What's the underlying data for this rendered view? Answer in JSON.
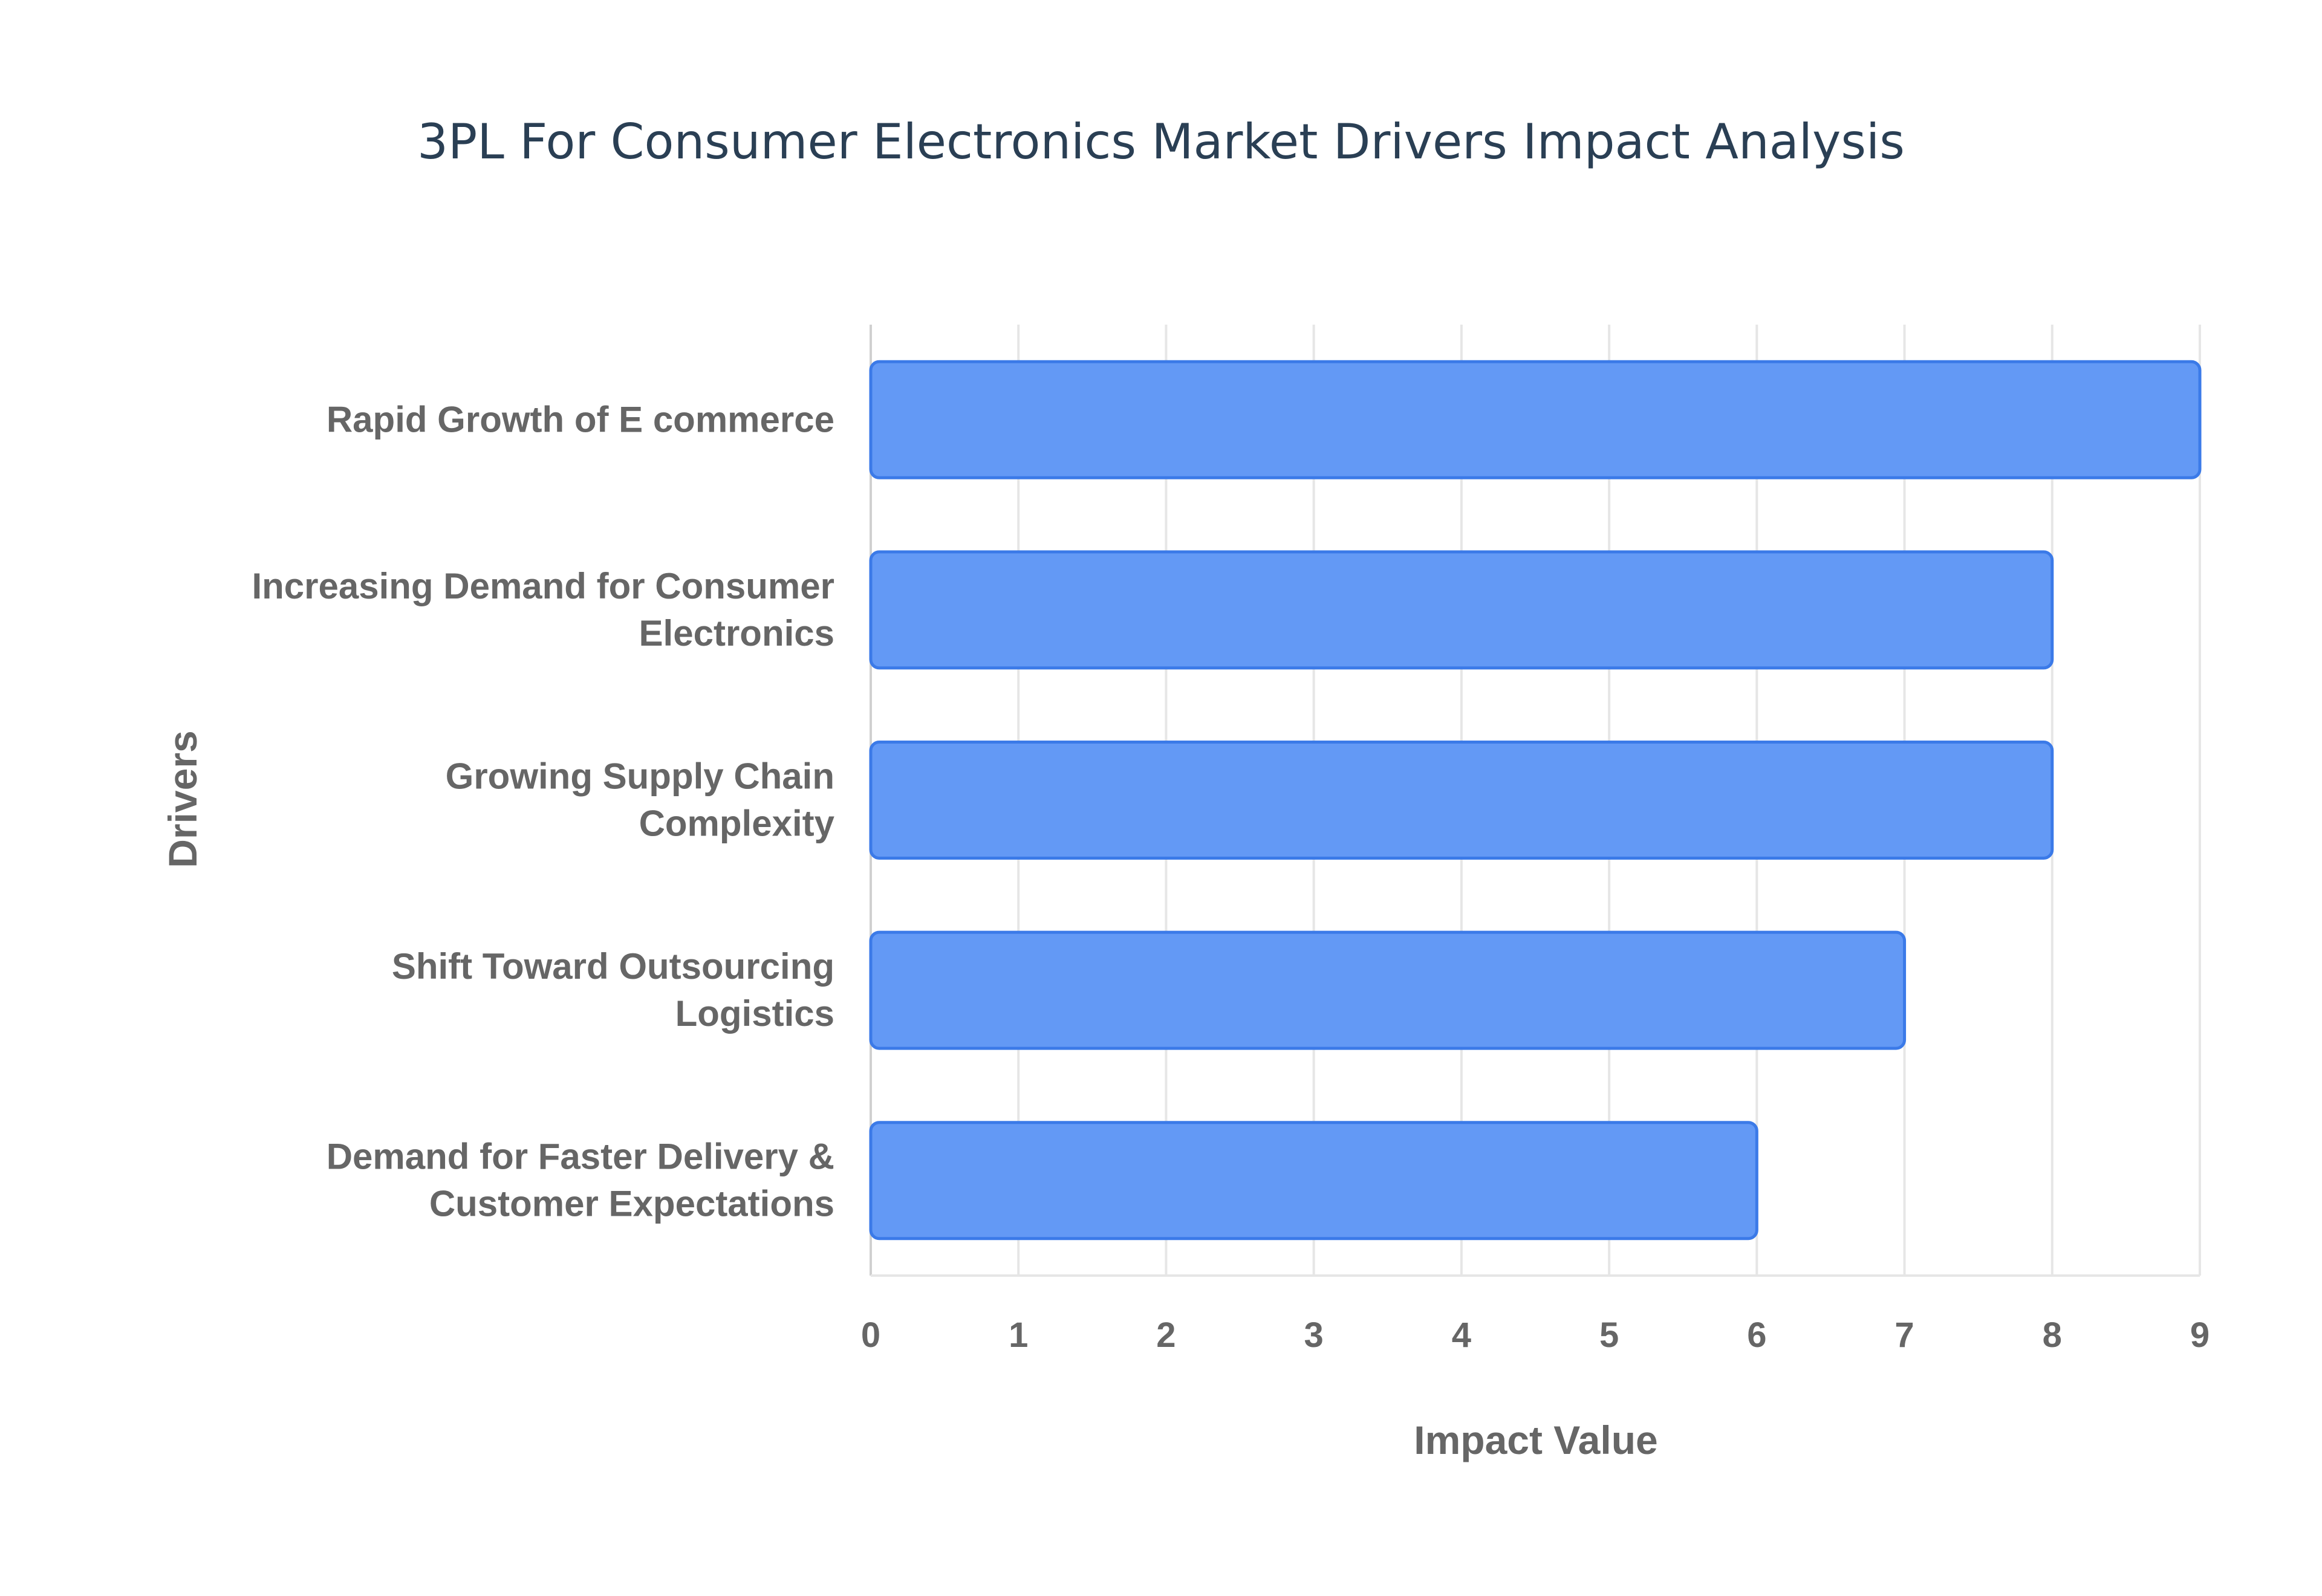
{
  "chart_data": {
    "type": "bar",
    "orientation": "horizontal",
    "title": "3PL For Consumer Electronics Market Drivers Impact Analysis",
    "xlabel": "Impact Value",
    "ylabel": "Drivers",
    "categories": [
      [
        "Rapid Growth of E commerce"
      ],
      [
        "Increasing Demand for Consumer",
        "Electronics"
      ],
      [
        "Growing Supply Chain",
        "Complexity"
      ],
      [
        "Shift Toward Outsourcing",
        "Logistics"
      ],
      [
        "Demand for Faster Delivery &",
        "Customer Expectations"
      ]
    ],
    "values": [
      9,
      8,
      8,
      7,
      6
    ],
    "xlim": [
      0,
      9
    ],
    "xticks": [
      "0",
      "1",
      "2",
      "3",
      "4",
      "5",
      "6",
      "7",
      "8",
      "9"
    ],
    "grid": true,
    "colors": {
      "bar_fill": "#6399f5",
      "bar_stroke": "#3b7ae8",
      "title": "#2a3f54",
      "text": "#666666",
      "grid": "#e6e6e6"
    }
  }
}
